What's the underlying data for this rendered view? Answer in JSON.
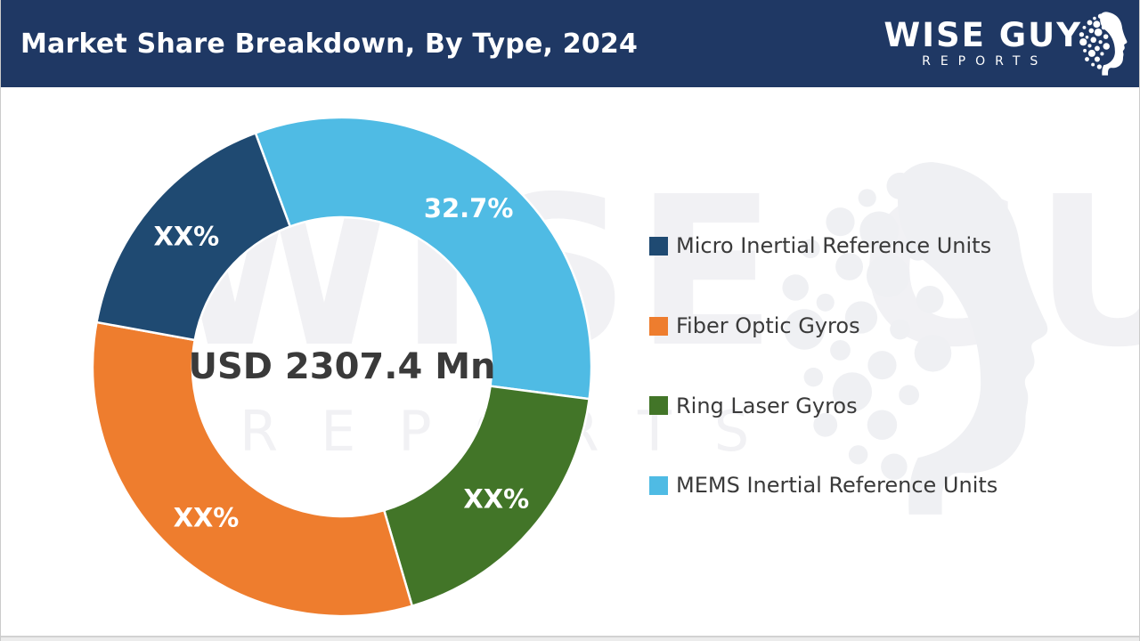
{
  "header": {
    "title": "Market Share Breakdown, By Type, 2024",
    "logo_line1": "WISE GUY",
    "logo_line2": "REPORTS"
  },
  "watermark": {
    "line1": "WISE GUY",
    "line2": "REPORTS"
  },
  "chart_data": {
    "type": "pie",
    "subtype": "donut",
    "title": "Market Share Breakdown, By Type, 2024",
    "center_label": "USD 2307.4 Mn",
    "start_angle_deg": -20.3,
    "legend_position": "right",
    "segments": [
      {
        "label": "MEMS Inertial Reference Units",
        "display_value": "32.7%",
        "value_pct_est": 32.7,
        "color": "#4fbbe4"
      },
      {
        "label": "Ring Laser Gyros",
        "display_value": "XX%",
        "value_pct_est": 18.4,
        "color": "#427528"
      },
      {
        "label": "Fiber Optic Gyros",
        "display_value": "XX%",
        "value_pct_est": 32.4,
        "color": "#ee7d2e"
      },
      {
        "label": "Micro Inertial Reference Units",
        "display_value": "XX%",
        "value_pct_est": 16.5,
        "color": "#1f4a72"
      }
    ]
  },
  "legend": {
    "items": [
      {
        "label": "Micro Inertial Reference Units",
        "color": "#1f4a72"
      },
      {
        "label": "Fiber Optic Gyros",
        "color": "#ee7d2e"
      },
      {
        "label": "Ring Laser Gyros",
        "color": "#427528"
      },
      {
        "label": "MEMS Inertial Reference Units",
        "color": "#4fbbe4"
      }
    ]
  },
  "colors": {
    "header_bg": "#1f3864",
    "title_text": "#ffffff",
    "center_text": "#3a3a3a",
    "legend_text": "#3a3a3a",
    "watermark": "#f1f1f4"
  }
}
